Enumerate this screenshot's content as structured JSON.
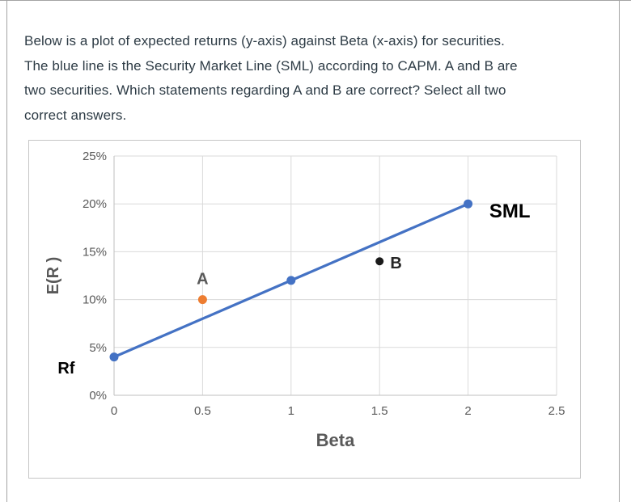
{
  "question": {
    "lines": [
      "Below is a plot of expected returns (y-axis) against Beta (x-axis) for securities.",
      "The blue line is the Security Market Line (SML) according to CAPM. A and B are",
      "two securities. Which statements regarding A and B are correct? Select all two",
      "correct answers."
    ]
  },
  "chart_data": {
    "type": "line",
    "title": "",
    "xlabel": "Beta",
    "ylabel": "E(R )",
    "xlim": [
      0,
      2.5
    ],
    "ylim": [
      0,
      25
    ],
    "grid": true,
    "x_ticks": {
      "values": [
        0,
        0.5,
        1,
        1.5,
        2,
        2.5
      ],
      "labels": [
        "0",
        "0.5",
        "1",
        "1.5",
        "2",
        "2.5"
      ]
    },
    "y_ticks": {
      "values": [
        0,
        5,
        10,
        15,
        20,
        25
      ],
      "labels": [
        "0%",
        "5%",
        "10%",
        "15%",
        "20%",
        "25%"
      ]
    },
    "series": [
      {
        "name": "SML",
        "kind": "line-with-markers",
        "color": "#4472c4",
        "points": [
          [
            0,
            4
          ],
          [
            1,
            12
          ],
          [
            2,
            20
          ]
        ]
      },
      {
        "name": "A",
        "kind": "point",
        "color": "#ed7d31",
        "points": [
          [
            0.5,
            10
          ]
        ]
      },
      {
        "name": "B",
        "kind": "point",
        "color": "#1a1a1a",
        "points": [
          [
            1.5,
            14
          ]
        ]
      }
    ],
    "annotations": [
      {
        "text": "SML",
        "x": 2.12,
        "y": 18.6,
        "anchor": "start",
        "size": 24,
        "color": "#000000"
      },
      {
        "text": "A",
        "x": 0.5,
        "y": 11.6,
        "anchor": "middle",
        "size": 20,
        "color": "#595959"
      },
      {
        "text": "B",
        "x": 1.56,
        "y": 13.25,
        "anchor": "start",
        "size": 20,
        "color": "#262626"
      },
      {
        "text": "Rf",
        "x": -0.27,
        "y": 2.3,
        "anchor": "middle",
        "size": 20,
        "color": "#000000"
      }
    ],
    "colors": {
      "gridline": "#dadada",
      "axis_line": "#bfbfbf",
      "tick_label": "#595959",
      "axis_title": "#595959"
    }
  }
}
